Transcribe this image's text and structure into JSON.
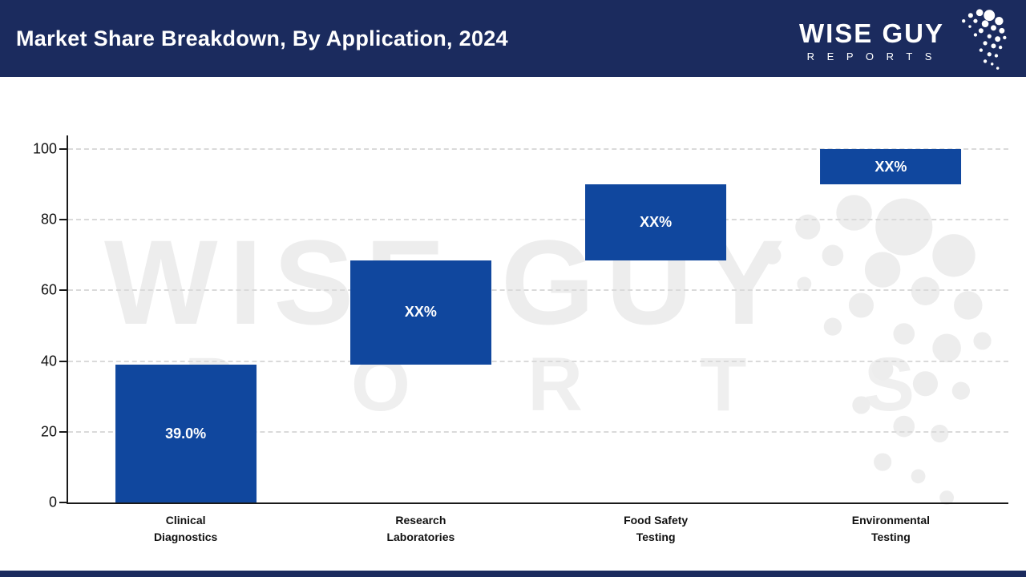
{
  "header": {
    "title": "Market Share Breakdown, By Application, 2024",
    "logo": {
      "line1": "WISE GUY",
      "line2": "R E P O R T S"
    }
  },
  "watermark": {
    "line1": "WISE GUY",
    "line2": "P O R T S"
  },
  "colors": {
    "header_bg": "#1b2b5e",
    "footer_bg": "#1b2b5e",
    "bar": "#10479e",
    "watermark": "#ededed",
    "gridline": "#dadada",
    "axis": "#1a1a1a",
    "title_text": "#ffffff"
  },
  "chart_data": {
    "type": "bar",
    "subtype": "floating-segment-waterfall",
    "title": "Market Share Breakdown, By Application, 2024",
    "categories": [
      "Clinical Diagnostics",
      "Research Laboratories",
      "Food Safety Testing",
      "Environmental Testing"
    ],
    "category_lines": [
      [
        "Clinical",
        "Diagnostics"
      ],
      [
        "Research",
        "Laboratories"
      ],
      [
        "Food Safety",
        "Testing"
      ],
      [
        "Environmental",
        "Testing"
      ]
    ],
    "segments": [
      {
        "category": "Clinical Diagnostics",
        "start": 0,
        "end": 39,
        "label": "39.0%"
      },
      {
        "category": "Research Laboratories",
        "start": 39,
        "end": 68.5,
        "label": "XX%"
      },
      {
        "category": "Food Safety Testing",
        "start": 68.5,
        "end": 90,
        "label": "XX%"
      },
      {
        "category": "Environmental Testing",
        "start": 90,
        "end": 100,
        "label": "XX%"
      }
    ],
    "ylim": [
      0,
      100
    ],
    "yticks": [
      0,
      20,
      40,
      60,
      80,
      100
    ],
    "grid": "horizontal-dashed",
    "legend": "none",
    "bar_color": "#10479e"
  }
}
